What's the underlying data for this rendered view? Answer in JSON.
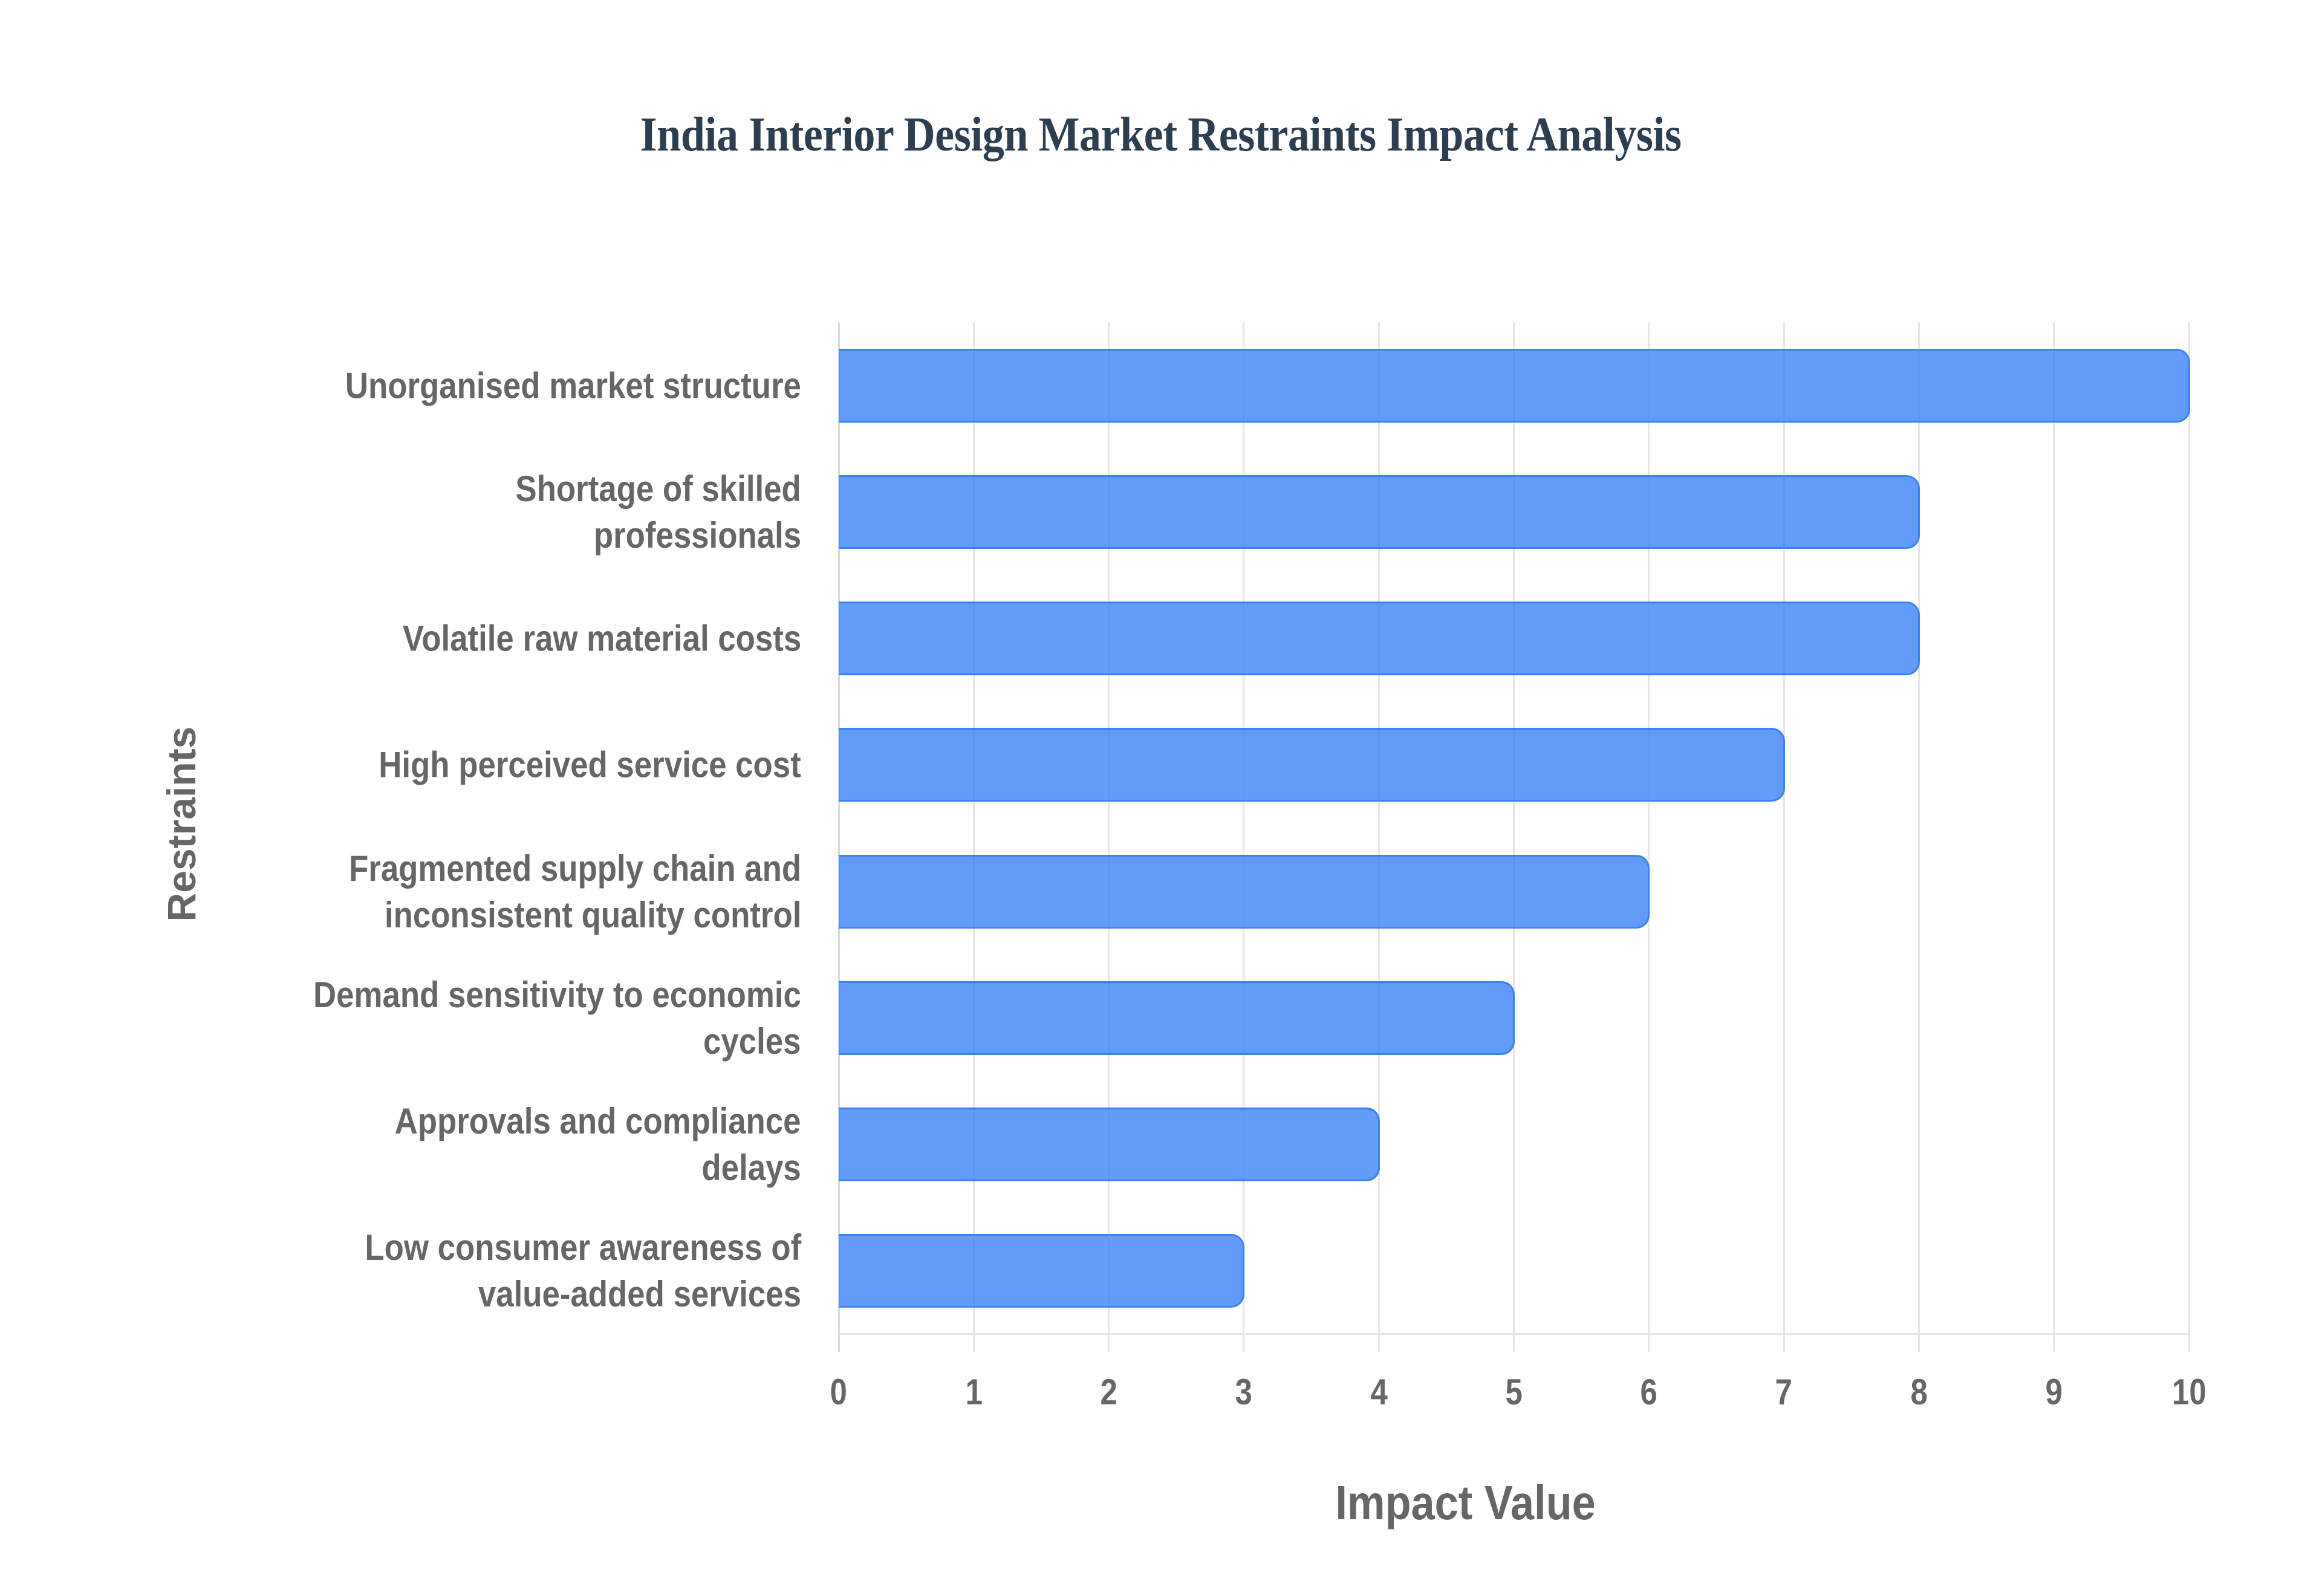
{
  "chart_data": {
    "type": "bar",
    "orientation": "horizontal",
    "title": "India Interior Design Market Restraints Impact Analysis",
    "xlabel": "Impact Value",
    "ylabel": "Restraints",
    "xlim": [
      0,
      10
    ],
    "xticks": [
      0,
      1,
      2,
      3,
      4,
      5,
      6,
      7,
      8,
      9,
      10
    ],
    "grid": true,
    "legend": null,
    "categories": [
      "Unorganised market structure",
      "Shortage of skilled professionals",
      "Volatile raw material costs",
      "High perceived service cost",
      "Fragmented supply chain and inconsistent quality control",
      "Demand sensitivity to economic cycles",
      "Approvals and compliance delays",
      "Low consumer awareness of value-added services"
    ],
    "category_lines": [
      [
        "Unorganised market structure"
      ],
      [
        "Shortage of skilled",
        "professionals"
      ],
      [
        "Volatile raw material costs"
      ],
      [
        "High perceived service cost"
      ],
      [
        "Fragmented supply chain and",
        "inconsistent quality control"
      ],
      [
        "Demand sensitivity to economic",
        "cycles"
      ],
      [
        "Approvals and compliance",
        "delays"
      ],
      [
        "Low consumer awareness of",
        "value-added services"
      ]
    ],
    "series": [
      {
        "name": "Impact Value",
        "values": [
          10,
          8,
          8,
          7,
          6,
          5,
          4,
          3
        ],
        "color": "#3b82f6"
      }
    ]
  },
  "colors": {
    "bar_fill": "rgba(59,130,246,0.8)",
    "bar_border": "#3b82f6",
    "title": "#2c3e50",
    "axis_text": "#666666",
    "grid": "#e6e6e6"
  }
}
